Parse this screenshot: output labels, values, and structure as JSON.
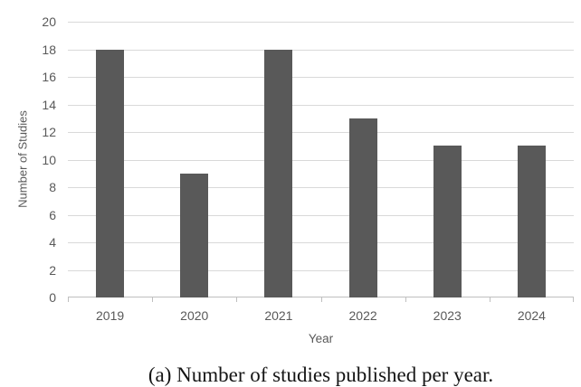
{
  "chart_data": {
    "type": "bar",
    "categories": [
      "2019",
      "2020",
      "2021",
      "2022",
      "2023",
      "2024"
    ],
    "values": [
      18,
      9,
      18,
      13,
      11,
      11
    ],
    "title": "",
    "xlabel": "Year",
    "ylabel": "Number of Studies",
    "ylim": [
      0,
      20
    ],
    "ytick_step": 2,
    "grid": true,
    "legend": "none",
    "bar_color": "#595959",
    "gridline_color": "#d9d9d9",
    "axis_color": "#bfbfbf",
    "tick_label_color": "#595959"
  },
  "caption": "(a) Number of studies published per year."
}
